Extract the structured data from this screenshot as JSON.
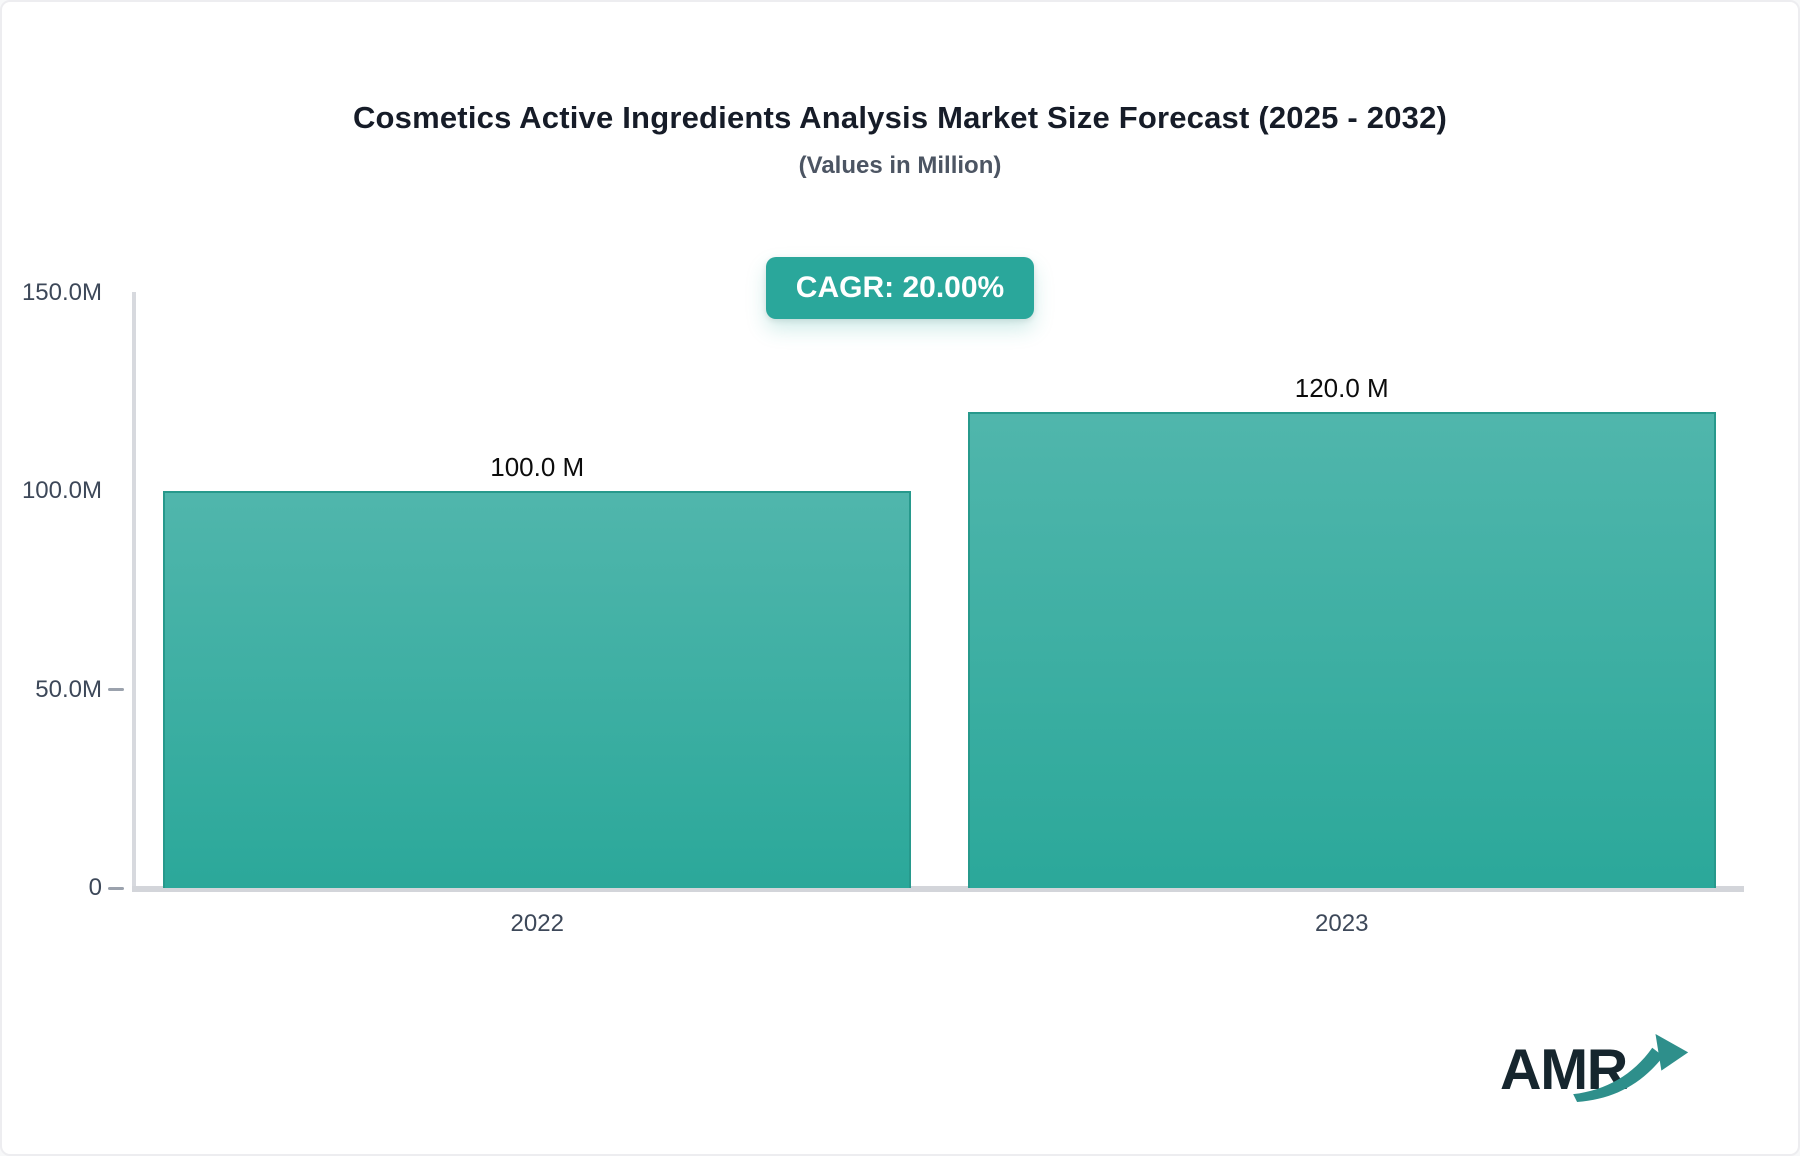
{
  "chart_data": {
    "type": "bar",
    "title": "Cosmetics Active Ingredients Analysis Market Size Forecast (2025 - 2032)",
    "subtitle": "(Values in Million)",
    "cagr_label": "CAGR: 20.00%",
    "categories": [
      "2022",
      "2023"
    ],
    "values": [
      100.0,
      120.0
    ],
    "value_labels": [
      "100.0 M",
      "120.0 M"
    ],
    "unit": "Million",
    "ylim": [
      0,
      150
    ],
    "yticks": [
      {
        "value": 150,
        "label": "150.0M",
        "dash": false
      },
      {
        "value": 100,
        "label": "100.0M",
        "dash": false
      },
      {
        "value": 50,
        "label": "50.0M",
        "dash": true
      },
      {
        "value": 0,
        "label": "0",
        "dash": true
      }
    ],
    "grid": false,
    "legend_position": "none"
  },
  "branding": {
    "logo_text": "AMR",
    "logo_icon": "trending-up-arrow"
  },
  "colors": {
    "accent_teal": "#2aa79b",
    "bar_gradient_top": "#50b6ac",
    "bar_gradient_bottom": "#2ba89a",
    "bar_border": "#27998c",
    "axis_line": "#d7d9de",
    "tick_text": "#3d4859",
    "value_label_text": "#0c0c0c",
    "title_text": "#161c28",
    "subtitle_text": "#4c5563",
    "logo_text_color": "#16262e",
    "logo_arrow_color": "#2e8f8b"
  }
}
